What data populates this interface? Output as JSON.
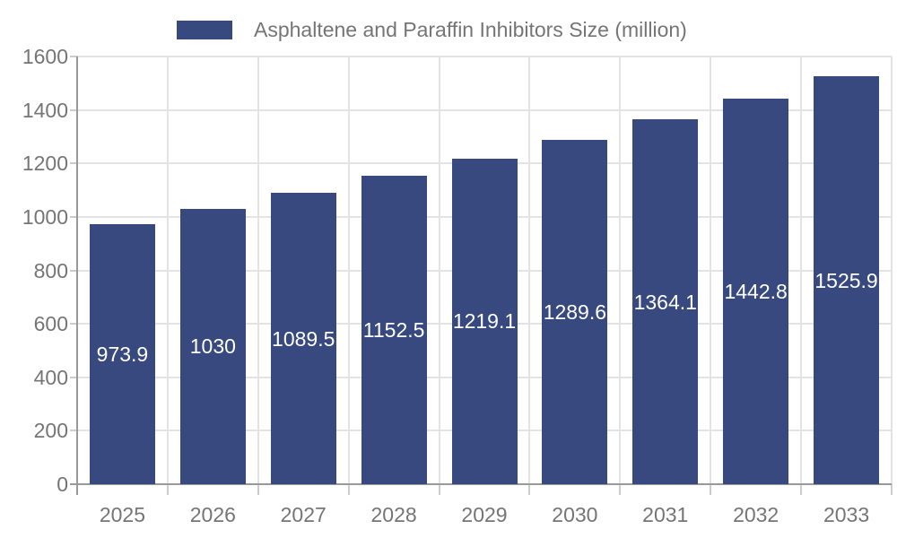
{
  "chart_data": {
    "type": "bar",
    "title": "",
    "legend_label": "Asphaltene and Paraffin Inhibitors Size (million)",
    "legend_position": "top",
    "categories": [
      "2025",
      "2026",
      "2027",
      "2028",
      "2029",
      "2030",
      "2031",
      "2032",
      "2033"
    ],
    "values": [
      973.9,
      1030,
      1089.5,
      1152.5,
      1219.1,
      1289.6,
      1364.1,
      1442.8,
      1525.9
    ],
    "value_labels": [
      "973.9",
      "1030",
      "1089.5",
      "1152.5",
      "1219.1",
      "1289.6",
      "1364.1",
      "1442.8",
      "1525.9"
    ],
    "xlabel": "",
    "ylabel": "",
    "ylim": [
      0,
      1600
    ],
    "ytick_labels": [
      "0",
      "200",
      "400",
      "600",
      "800",
      "1000",
      "1200",
      "1400",
      "1600"
    ],
    "grid": true,
    "value_label_position": "inside-center",
    "colors": {
      "bar": "#37497E",
      "grid": "#E3E3E3",
      "axis": "#999999",
      "tick": "#CCCCCC",
      "label": "#757575",
      "bar_label": "#FFFFFF",
      "background": "#FFFFFF"
    }
  }
}
